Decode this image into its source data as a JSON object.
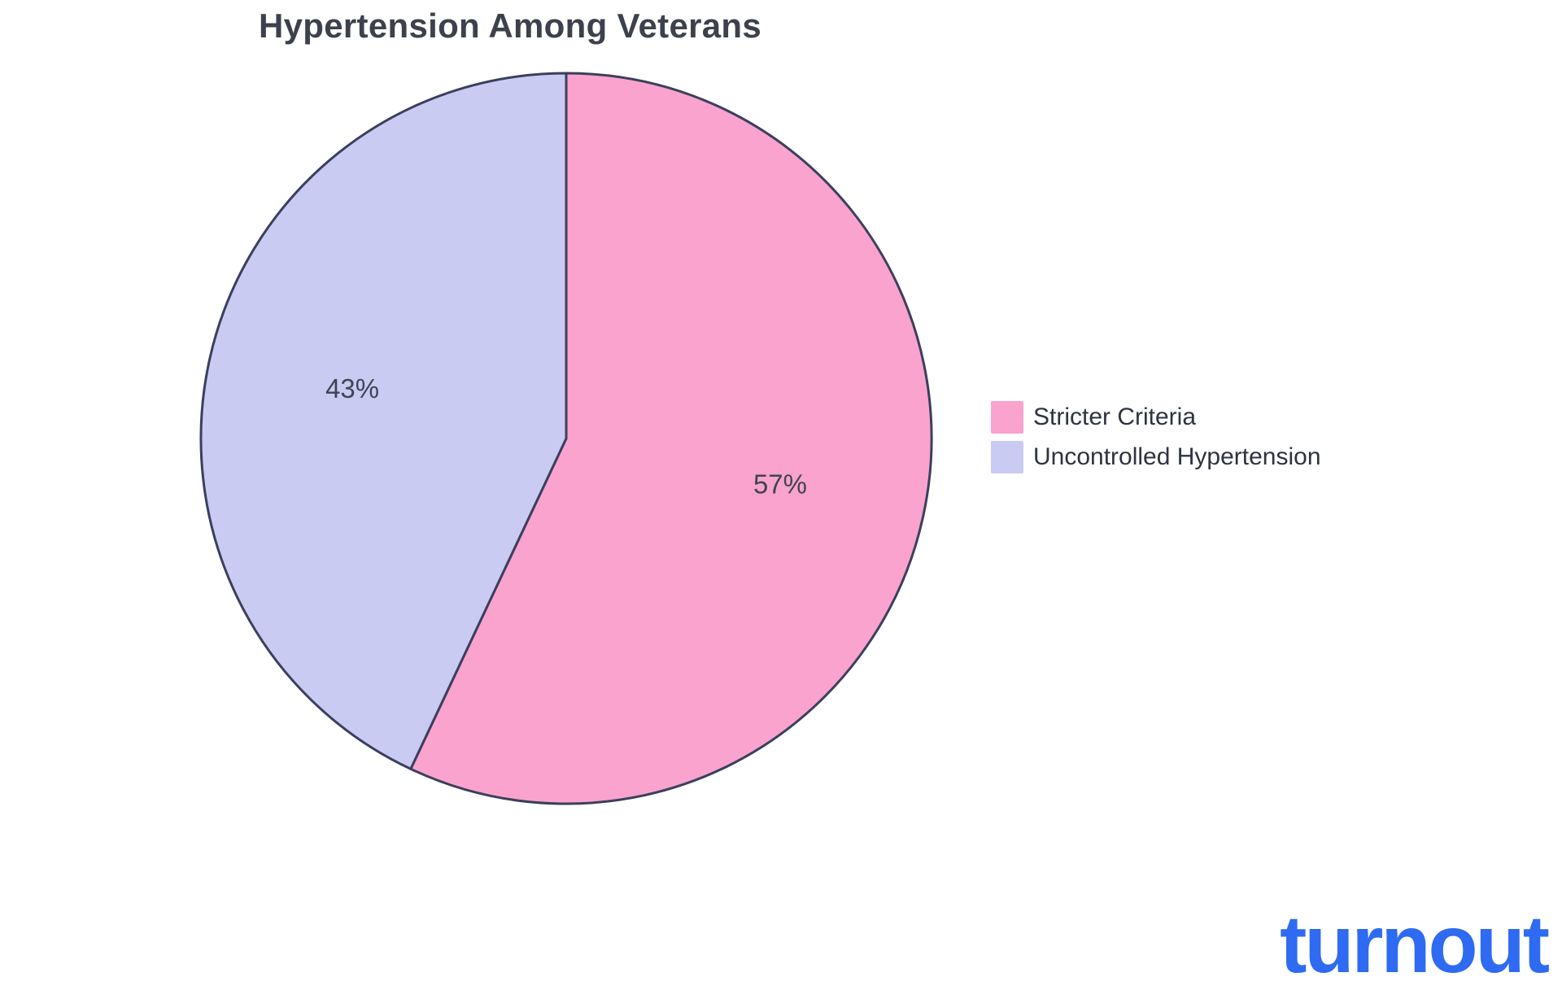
{
  "page": {
    "background": "#ffffff"
  },
  "chart_data": {
    "type": "pie",
    "title": "Hypertension Among Veterans",
    "labels": [
      "Stricter Criteria",
      "Uncontrolled Hypertension"
    ],
    "values": [
      57,
      43
    ],
    "value_labels": [
      "57%",
      "43%"
    ],
    "colors": [
      "#F9A3CE",
      "#C9CBF3"
    ],
    "stroke_color": "#3B3F5C",
    "start_angle_deg": 0,
    "direction": "clockwise",
    "legend_position": "right",
    "percent_label_color": "#3E4452"
  },
  "watermark": {
    "text": "turnout",
    "color": "#2E6BF2"
  }
}
